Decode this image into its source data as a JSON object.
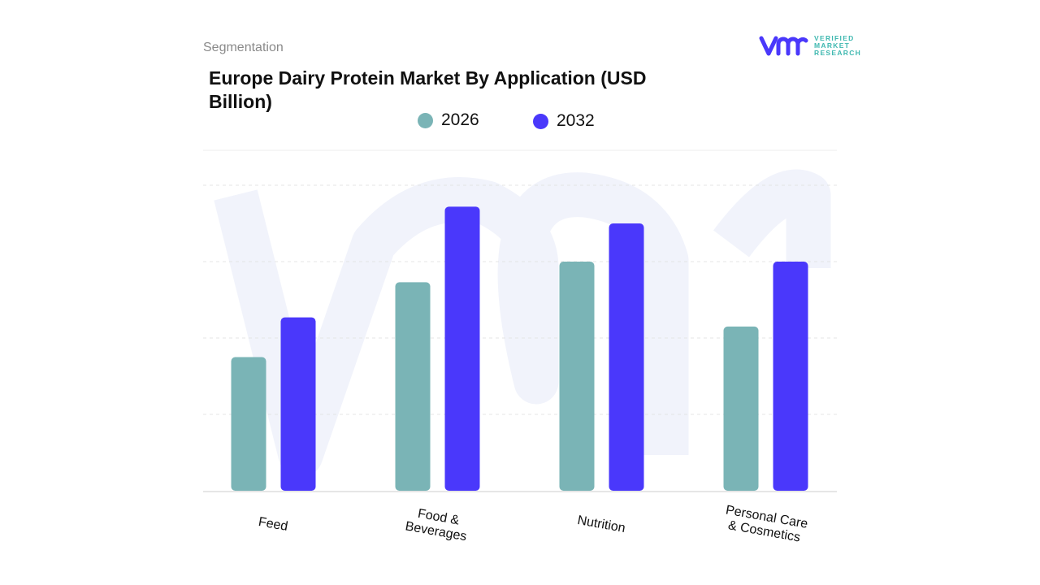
{
  "header": {
    "section": "Segmentation"
  },
  "logo": {
    "text_lines": [
      "VERIFIED",
      "MARKET",
      "RESEARCH"
    ]
  },
  "chart_data": {
    "type": "bar",
    "title": "Europe Dairy Protein Market By Application (USD Billion)",
    "categories": [
      "Feed",
      "Food & Beverages",
      "Nutrition",
      "Personal Care & Cosmetics"
    ],
    "category_display": [
      [
        "Feed"
      ],
      [
        "Food &",
        "Beverages"
      ],
      [
        "Nutrition"
      ],
      [
        "Personal Care",
        "& Cosmetics"
      ]
    ],
    "series": [
      {
        "name": "2026",
        "color": "#7ab4b6",
        "values": [
          1.75,
          2.73,
          3.0,
          2.15
        ]
      },
      {
        "name": "2032",
        "color": "#4a38fb",
        "values": [
          2.27,
          3.72,
          3.5,
          3.0
        ]
      }
    ],
    "ylim": [
      0,
      4
    ],
    "y_ticks_shown": false,
    "grid": true,
    "legend": "top-center",
    "xlabel": "",
    "ylabel": ""
  }
}
